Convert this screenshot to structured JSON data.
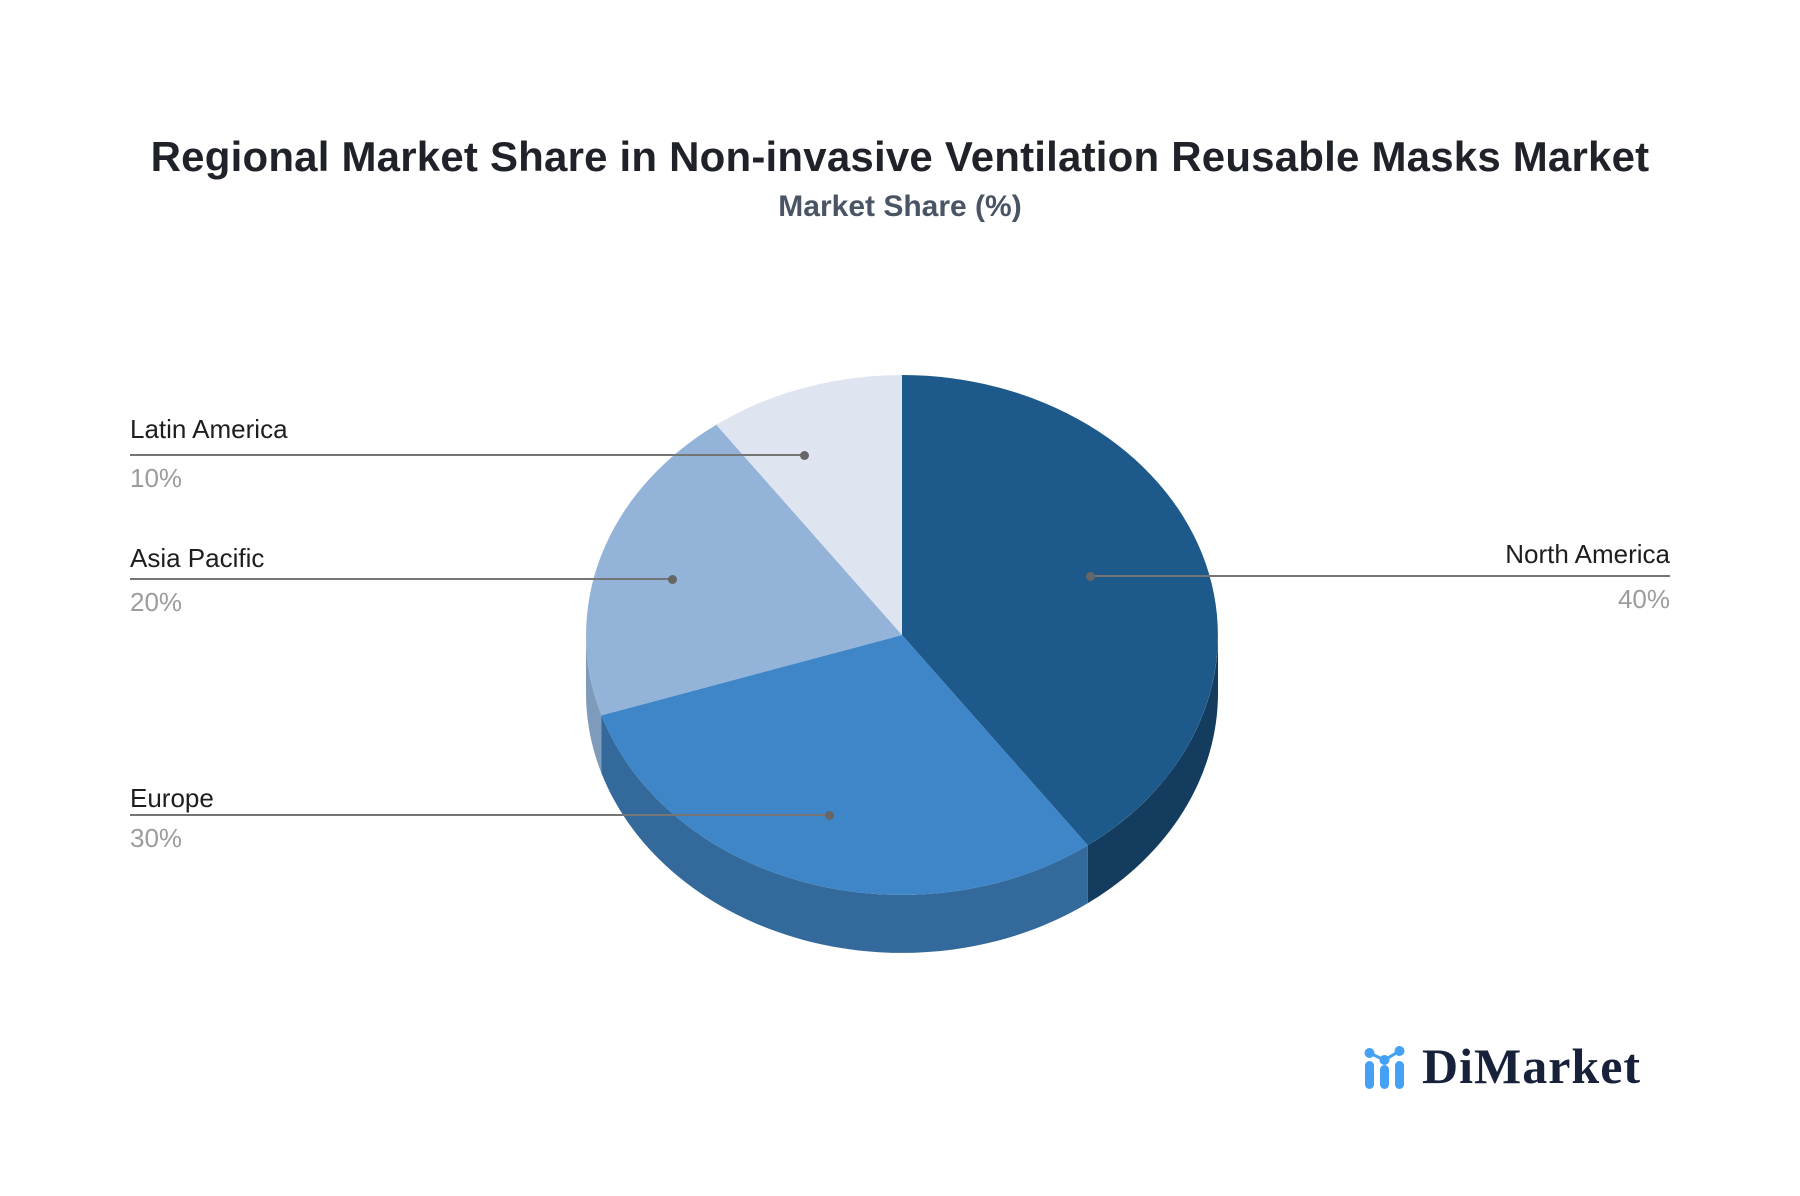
{
  "title": "Regional Market Share in Non-invasive Ventilation Reusable Masks Market",
  "subtitle": "Market Share (%)",
  "chart_data": {
    "type": "pie",
    "title": "Regional Market Share in Non-invasive Ventilation Reusable Masks Market",
    "subtitle": "Market Share (%)",
    "unit": "percent",
    "effect": "3d",
    "start_angle_deg": 0,
    "direction": "clockwise",
    "legend": "none",
    "slices": [
      {
        "name": "North America",
        "value": 40,
        "value_label": "40%",
        "color": "#1D5A8B",
        "side_color": "#133C5E",
        "label_side": "right"
      },
      {
        "name": "Europe",
        "value": 30,
        "value_label": "30%",
        "color": "#3E86C8",
        "side_color": "#34699B",
        "label_side": "left"
      },
      {
        "name": "Asia Pacific",
        "value": 20,
        "value_label": "20%",
        "color": "#93B3D9",
        "side_color": "#7E9BBC",
        "label_side": "left"
      },
      {
        "name": "Latin America",
        "value": 10,
        "value_label": "10%",
        "color": "#DEE5F0",
        "side_color": "#C2CDDF",
        "label_side": "left"
      }
    ]
  },
  "colors": {
    "background": "#FFFFFF",
    "title": "#1F2228",
    "subtitle": "#495464",
    "label": "#1E1E1E",
    "value": "#9C9C9C",
    "leader_line": "#757575"
  },
  "logo": {
    "text": "DiMarket",
    "icon": "bar-chart-trend-icon",
    "icon_color": "#45A1F3",
    "text_color": "#17223A"
  }
}
